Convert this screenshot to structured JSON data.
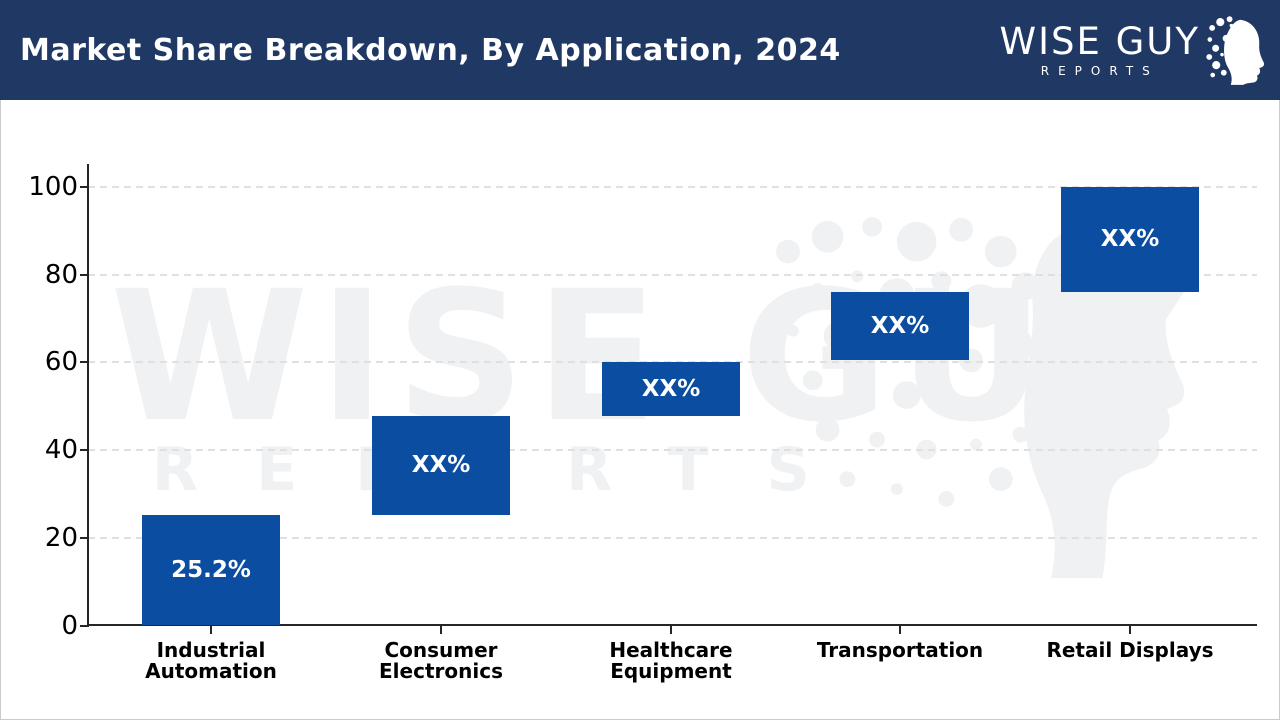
{
  "header": {
    "title": "Market Share Breakdown, By Application, 2024",
    "brand_line1": "WISE GUY",
    "brand_line2": "REPORTS"
  },
  "watermark": {
    "line1": "WISE GUY",
    "line2": "REPORTS"
  },
  "colors": {
    "header_bg": "#203864",
    "bar": "#0b4da0",
    "bar_label": "#ffffff",
    "grid": "#e0e0e0",
    "axis": "#262626",
    "text": "#000000",
    "watermark": "#f0f1f3",
    "figure_border": "#cbcbcb"
  },
  "chart_data": {
    "type": "bar",
    "subtype": "waterfall",
    "title": "Market Share Breakdown, By Application, 2024",
    "categories": [
      "Industrial\nAutomation",
      "Consumer\nElectronics",
      "Healthcare\nEquipment",
      "Transportation",
      "Retail Displays"
    ],
    "segments": [
      {
        "category": "Industrial Automation",
        "start": 0,
        "end": 25.2,
        "label": "25.2%"
      },
      {
        "category": "Consumer Electronics",
        "start": 25.2,
        "end": 47.8,
        "label": "XX%"
      },
      {
        "category": "Healthcare Equipment",
        "start": 47.8,
        "end": 60.1,
        "label": "XX%"
      },
      {
        "category": "Transportation",
        "start": 60.5,
        "end": 76.1,
        "label": "XX%"
      },
      {
        "category": "Retail Displays",
        "start": 76.1,
        "end": 100,
        "label": "XX%"
      }
    ],
    "xlabel": "",
    "ylabel": "",
    "ylim": [
      0,
      100
    ],
    "yticks": [
      0,
      20,
      40,
      60,
      80,
      100
    ],
    "grid": "horizontal-dashed",
    "legend": "none"
  }
}
